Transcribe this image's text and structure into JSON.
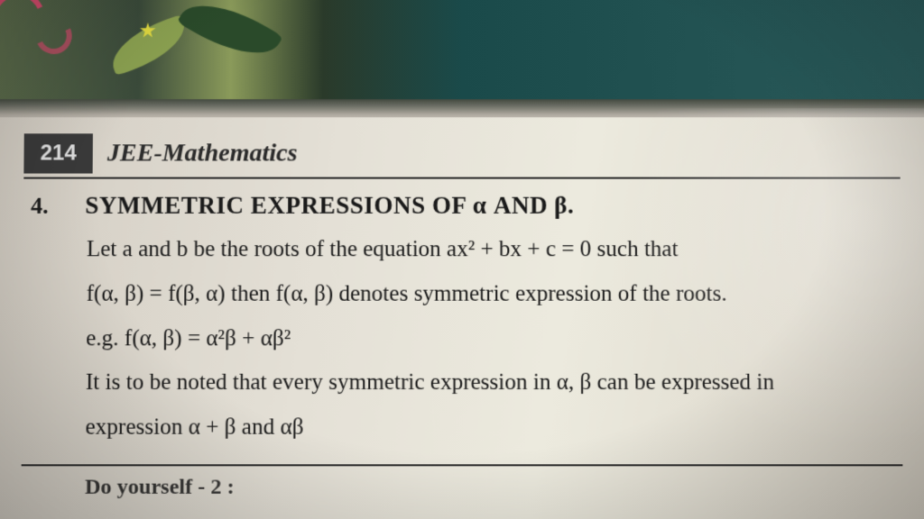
{
  "header": {
    "page_number": "214",
    "book_title": "JEE-Mathematics"
  },
  "section": {
    "number": "4.",
    "title": "SYMMETRIC EXPRESSIONS OF α AND β."
  },
  "body": {
    "line1": "Let a and b be the roots of the equation ax² + bx + c = 0 such that",
    "line2": "f(α, β) = f(β, α) then f(α, β) denotes symmetric expression of the roots.",
    "line3": "e.g. f(α, β) = α²β + αβ²",
    "line4": "It is to be noted that every symmetric expression in α, β can be expressed in",
    "line5": "expression α + β and αβ"
  },
  "footer": {
    "do_yourself": "Do yourself - 2 :"
  },
  "colors": {
    "page_num_bg": "#3a3a3a",
    "page_num_fg": "#e0e0e0",
    "text": "#1a1a1a",
    "paper": "#e4e0d6"
  }
}
